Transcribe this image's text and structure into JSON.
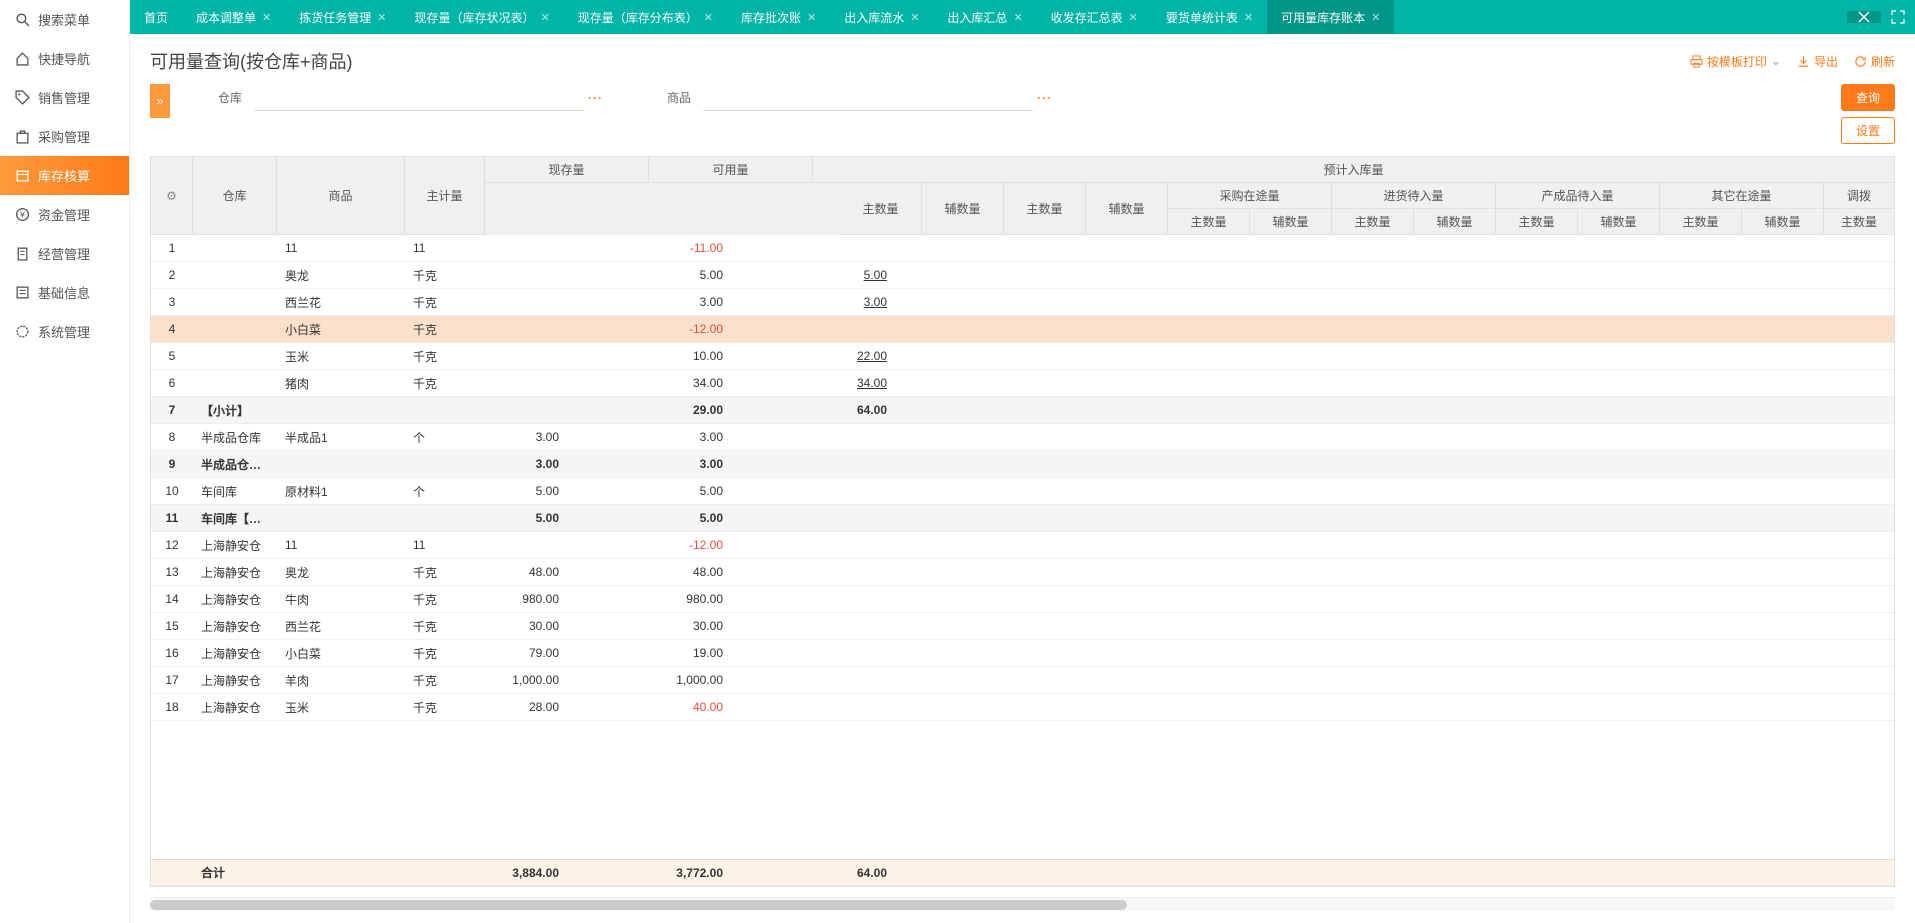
{
  "sidebar": {
    "items": [
      {
        "label": "搜索菜单",
        "icon": "search"
      },
      {
        "label": "快捷导航",
        "icon": "home"
      },
      {
        "label": "销售管理",
        "icon": "tag"
      },
      {
        "label": "采购管理",
        "icon": "bag"
      },
      {
        "label": "库存核算",
        "icon": "box",
        "active": true
      },
      {
        "label": "资金管理",
        "icon": "money"
      },
      {
        "label": "经营管理",
        "icon": "clipboard"
      },
      {
        "label": "基础信息",
        "icon": "info"
      },
      {
        "label": "系统管理",
        "icon": "gear"
      }
    ]
  },
  "tabs": {
    "items": [
      {
        "label": "首页",
        "closable": false
      },
      {
        "label": "成本调整单",
        "closable": true
      },
      {
        "label": "拣货任务管理",
        "closable": true
      },
      {
        "label": "现存量（库存状况表）",
        "closable": true
      },
      {
        "label": "现存量（库存分布表）",
        "closable": true
      },
      {
        "label": "库存批次账",
        "closable": true
      },
      {
        "label": "出入库流水",
        "closable": true
      },
      {
        "label": "出入库汇总",
        "closable": true
      },
      {
        "label": "收发存汇总表",
        "closable": true
      },
      {
        "label": "要货单统计表",
        "closable": true
      },
      {
        "label": "可用量库存账本",
        "closable": true,
        "active": true
      }
    ]
  },
  "page": {
    "title": "可用量查询(按仓库+商品)",
    "actions": {
      "print": "按模板打印",
      "export": "导出",
      "refresh": "刷新"
    }
  },
  "filter": {
    "warehouse_label": "仓库",
    "warehouse_value": "",
    "product_label": "商品",
    "product_value": "",
    "more": "···",
    "query_btn": "查询",
    "settings_btn": "设置"
  },
  "table": {
    "headers": {
      "warehouse": "仓库",
      "product": "商品",
      "main_unit": "主计量",
      "current_stock": "现存量",
      "available": "可用量",
      "expected_in": "预计入库量",
      "main_qty": "主数量",
      "aux_qty": "辅数量",
      "purchase_transit": "采购在途量",
      "receipt_pending": "进货待入量",
      "finished_pending": "产成品待入量",
      "other_transit": "其它在途量",
      "transfer": "调拨"
    },
    "rows": [
      {
        "idx": "1",
        "wh": "",
        "prod": "11",
        "unit": "11",
        "cur_m": "",
        "avail_m": "-11.00",
        "neg": true
      },
      {
        "idx": "2",
        "wh": "",
        "prod": "奥龙",
        "unit": "千克",
        "cur_m": "",
        "avail_m": "5.00",
        "purch_m": "5.00",
        "ul": true
      },
      {
        "idx": "3",
        "wh": "",
        "prod": "西兰花",
        "unit": "千克",
        "cur_m": "",
        "avail_m": "3.00",
        "purch_m": "3.00",
        "ul": true
      },
      {
        "idx": "4",
        "wh": "",
        "prod": "小白菜",
        "unit": "千克",
        "cur_m": "",
        "avail_m": "-12.00",
        "neg": true,
        "hl": true
      },
      {
        "idx": "5",
        "wh": "",
        "prod": "玉米",
        "unit": "千克",
        "cur_m": "",
        "avail_m": "10.00",
        "purch_m": "22.00",
        "ul": true
      },
      {
        "idx": "6",
        "wh": "",
        "prod": "猪肉",
        "unit": "千克",
        "cur_m": "",
        "avail_m": "34.00",
        "purch_m": "34.00",
        "ul": true
      },
      {
        "idx": "7",
        "wh": "【小计】",
        "prod": "",
        "unit": "",
        "cur_m": "",
        "avail_m": "29.00",
        "purch_m": "64.00",
        "subtotal": true
      },
      {
        "idx": "8",
        "wh": "半成品仓库",
        "prod": "半成品1",
        "unit": "个",
        "cur_m": "3.00",
        "avail_m": "3.00"
      },
      {
        "idx": "9",
        "wh": "半成品仓库...",
        "prod": "",
        "unit": "",
        "cur_m": "3.00",
        "avail_m": "3.00",
        "subtotal": true
      },
      {
        "idx": "10",
        "wh": "车间库",
        "prod": "原材料1",
        "unit": "个",
        "cur_m": "5.00",
        "avail_m": "5.00"
      },
      {
        "idx": "11",
        "wh": "车间库【小...",
        "prod": "",
        "unit": "",
        "cur_m": "5.00",
        "avail_m": "5.00",
        "subtotal": true
      },
      {
        "idx": "12",
        "wh": "上海静安仓",
        "prod": "11",
        "unit": "11",
        "cur_m": "",
        "avail_m": "-12.00",
        "neg": true
      },
      {
        "idx": "13",
        "wh": "上海静安仓",
        "prod": "奥龙",
        "unit": "千克",
        "cur_m": "48.00",
        "avail_m": "48.00"
      },
      {
        "idx": "14",
        "wh": "上海静安仓",
        "prod": "牛肉",
        "unit": "千克",
        "cur_m": "980.00",
        "avail_m": "980.00"
      },
      {
        "idx": "15",
        "wh": "上海静安仓",
        "prod": "西兰花",
        "unit": "千克",
        "cur_m": "30.00",
        "avail_m": "30.00"
      },
      {
        "idx": "16",
        "wh": "上海静安仓",
        "prod": "小白菜",
        "unit": "千克",
        "cur_m": "79.00",
        "avail_m": "19.00"
      },
      {
        "idx": "17",
        "wh": "上海静安仓",
        "prod": "羊肉",
        "unit": "千克",
        "cur_m": "1,000.00",
        "avail_m": "1,000.00"
      },
      {
        "idx": "18",
        "wh": "上海静安仓",
        "prod": "玉米",
        "unit": "千克",
        "cur_m": "28.00",
        "avail_m": "40.00",
        "neg": true
      }
    ],
    "total": {
      "label": "合计",
      "cur_m": "3,884.00",
      "avail_m": "3,772.00",
      "purch_m": "64.00"
    }
  },
  "colors": {
    "accent": "#ff7a18",
    "tabs_bg": "#00b5a5",
    "tab_active": "#009688",
    "negative": "#e74c3c"
  }
}
